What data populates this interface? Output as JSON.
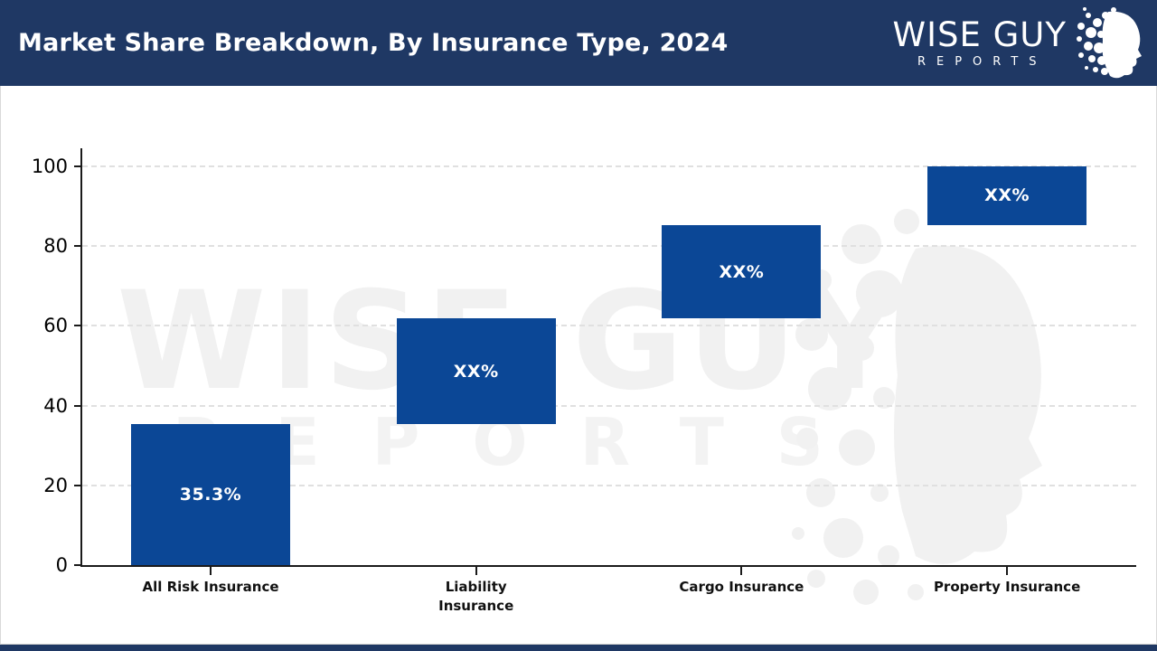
{
  "header": {
    "title": "Market Share Breakdown, By Insurance Type, 2024",
    "bg_color": "#1f3864",
    "logo": {
      "line1": "WISE GUY",
      "line2": "REPORTS"
    }
  },
  "watermark": {
    "line1": "WISE GUY",
    "line2": "REPORTS"
  },
  "chart_data": {
    "type": "bar",
    "subtype": "floating-segment-waterfall",
    "title": "Market Share Breakdown, By Insurance Type, 2024",
    "categories": [
      "All Risk Insurance",
      "Liability\nInsurance",
      "Cargo Insurance",
      "Property Insurance"
    ],
    "series": [
      {
        "name": "Market Share %",
        "segments": [
          {
            "category": "All Risk Insurance",
            "start": 0,
            "end": 35.3,
            "label": "35.3%"
          },
          {
            "category": "Liability Insurance",
            "start": 35.3,
            "end": 61.8,
            "label": "XX%"
          },
          {
            "category": "Cargo Insurance",
            "start": 61.8,
            "end": 85.3,
            "label": "XX%"
          },
          {
            "category": "Property Insurance",
            "start": 85.3,
            "end": 100,
            "label": "XX%"
          }
        ]
      }
    ],
    "xlabel": "",
    "ylabel": "",
    "ylim": [
      0,
      105
    ],
    "yticks": [
      0,
      20,
      40,
      60,
      80,
      100
    ],
    "grid": "horizontal-dashed",
    "bar_color": "#0b4796",
    "bar_label_color": "#ffffff",
    "axis_color": "#1a1a1a"
  }
}
